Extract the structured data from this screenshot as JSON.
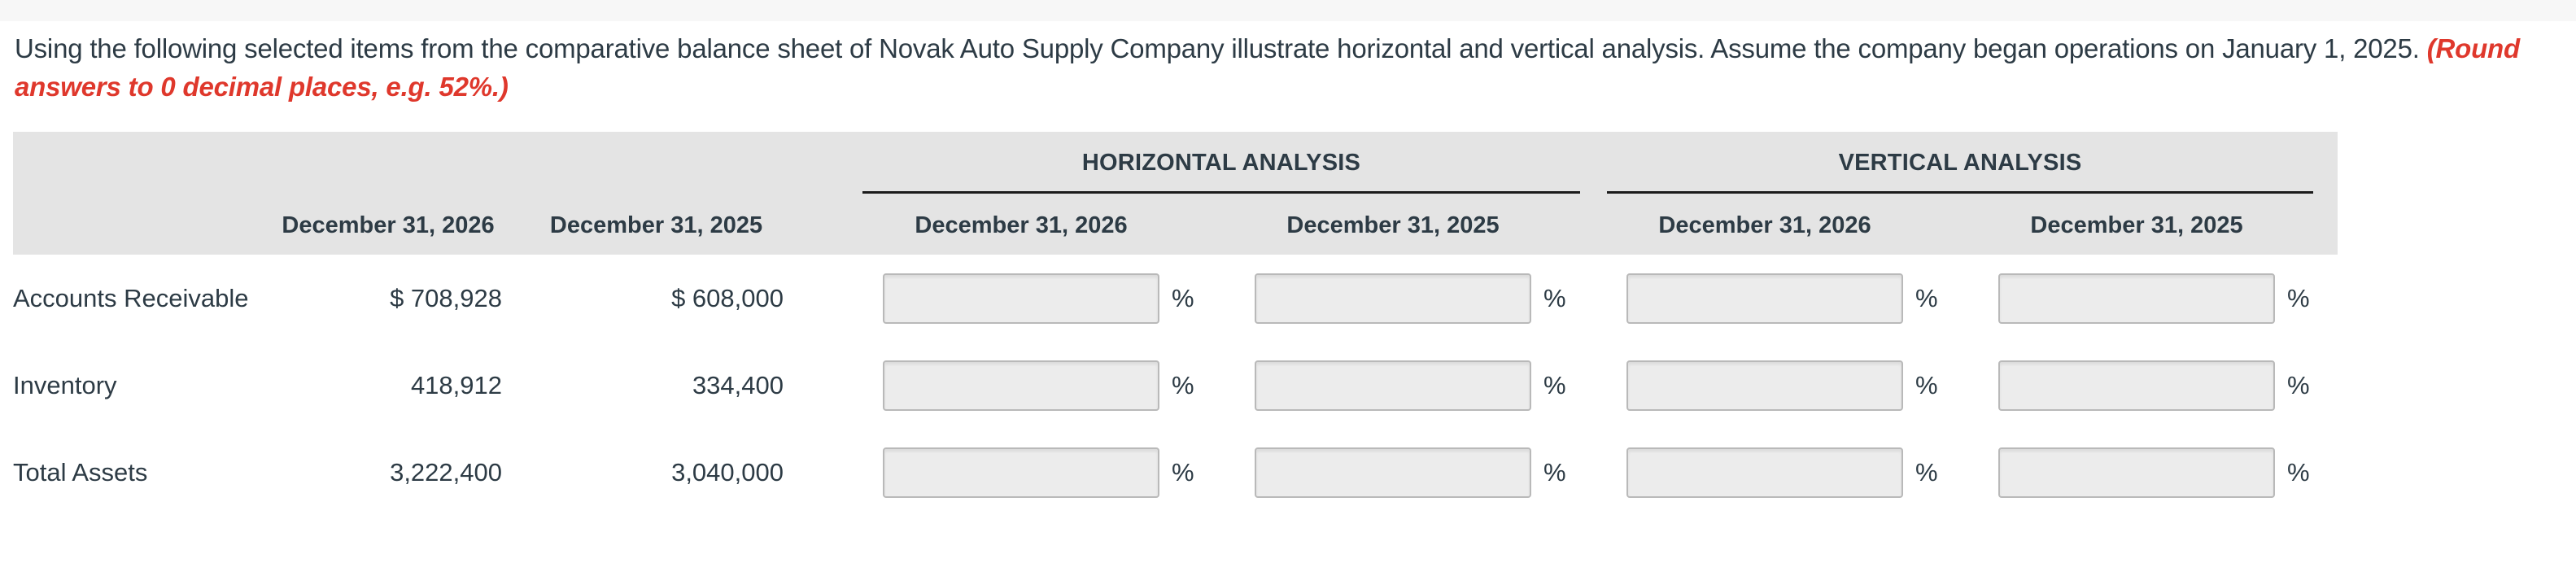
{
  "instruction": {
    "main": "Using the following selected items from the comparative balance sheet of Novak Auto Supply Company illustrate horizontal and vertical analysis. Assume the company began operations on January 1, 2025. ",
    "note": "(Round answers to 0 decimal places, e.g. 52%.)"
  },
  "table": {
    "group_headers": {
      "horizontal": "HORIZONTAL ANALYSIS",
      "vertical": "VERTICAL ANALYSIS"
    },
    "column_headers": {
      "amount_2026": "December 31, 2026",
      "amount_2025": "December 31, 2025",
      "horizontal_2026": "December 31, 2026",
      "horizontal_2025": "December 31, 2025",
      "vertical_2026": "December 31, 2026",
      "vertical_2025": "December 31, 2025"
    },
    "percent_symbol": "%",
    "rows": [
      {
        "label": "Accounts Receivable",
        "amount_2026": "$ 708,928",
        "amount_2025": "$ 608,000",
        "inputs": {
          "h_2026": "",
          "h_2025": "",
          "v_2026": "",
          "v_2025": ""
        }
      },
      {
        "label": "Inventory",
        "amount_2026": "418,912",
        "amount_2025": "334,400",
        "inputs": {
          "h_2026": "",
          "h_2025": "",
          "v_2026": "",
          "v_2025": ""
        }
      },
      {
        "label": "Total Assets",
        "amount_2026": "3,222,400",
        "amount_2025": "3,040,000",
        "inputs": {
          "h_2026": "",
          "h_2025": "",
          "v_2026": "",
          "v_2025": ""
        }
      }
    ]
  },
  "colors": {
    "text": "#2d3b45",
    "note_red": "#df382c",
    "header_band": "#e4e4e4",
    "field_background": "#ececec",
    "field_border": "#b9b9b9",
    "underline": "#1b1b1b",
    "top_strip": "#f7f7f7"
  }
}
